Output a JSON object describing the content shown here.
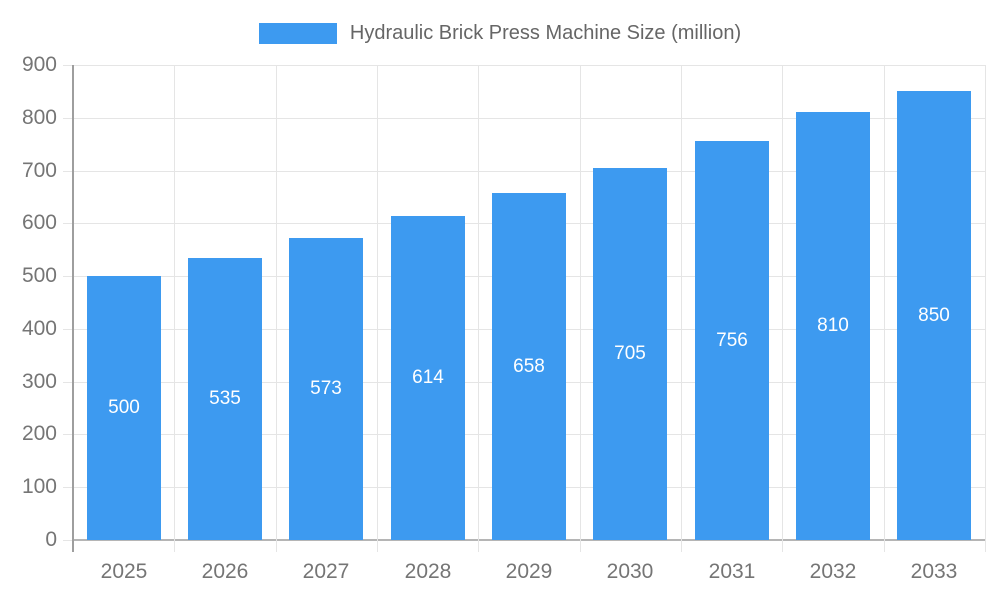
{
  "legend": {
    "label": "Hydraulic Brick Press Machine Size (million)"
  },
  "chart_data": {
    "type": "bar",
    "title": "Hydraulic Brick Press Machine Size (million)",
    "categories": [
      "2025",
      "2026",
      "2027",
      "2028",
      "2029",
      "2030",
      "2031",
      "2032",
      "2033"
    ],
    "values": [
      500,
      535,
      573,
      614,
      658,
      705,
      756,
      810,
      850
    ],
    "xlabel": "",
    "ylabel": "",
    "ylim": [
      0,
      900
    ],
    "ytick_step": 100,
    "grid": true,
    "legend_position": "top",
    "data_labels": "inside-center",
    "colors": {
      "bar": "#3D9AF0",
      "bar_label_text": "#ffffff",
      "axis_text": "#757575",
      "legend_text": "#666666",
      "gridline": "#e5e5e5",
      "y_axis_line": "#9e9e9e",
      "x_axis_line": "#b5b5b5",
      "background": "#ffffff"
    }
  }
}
